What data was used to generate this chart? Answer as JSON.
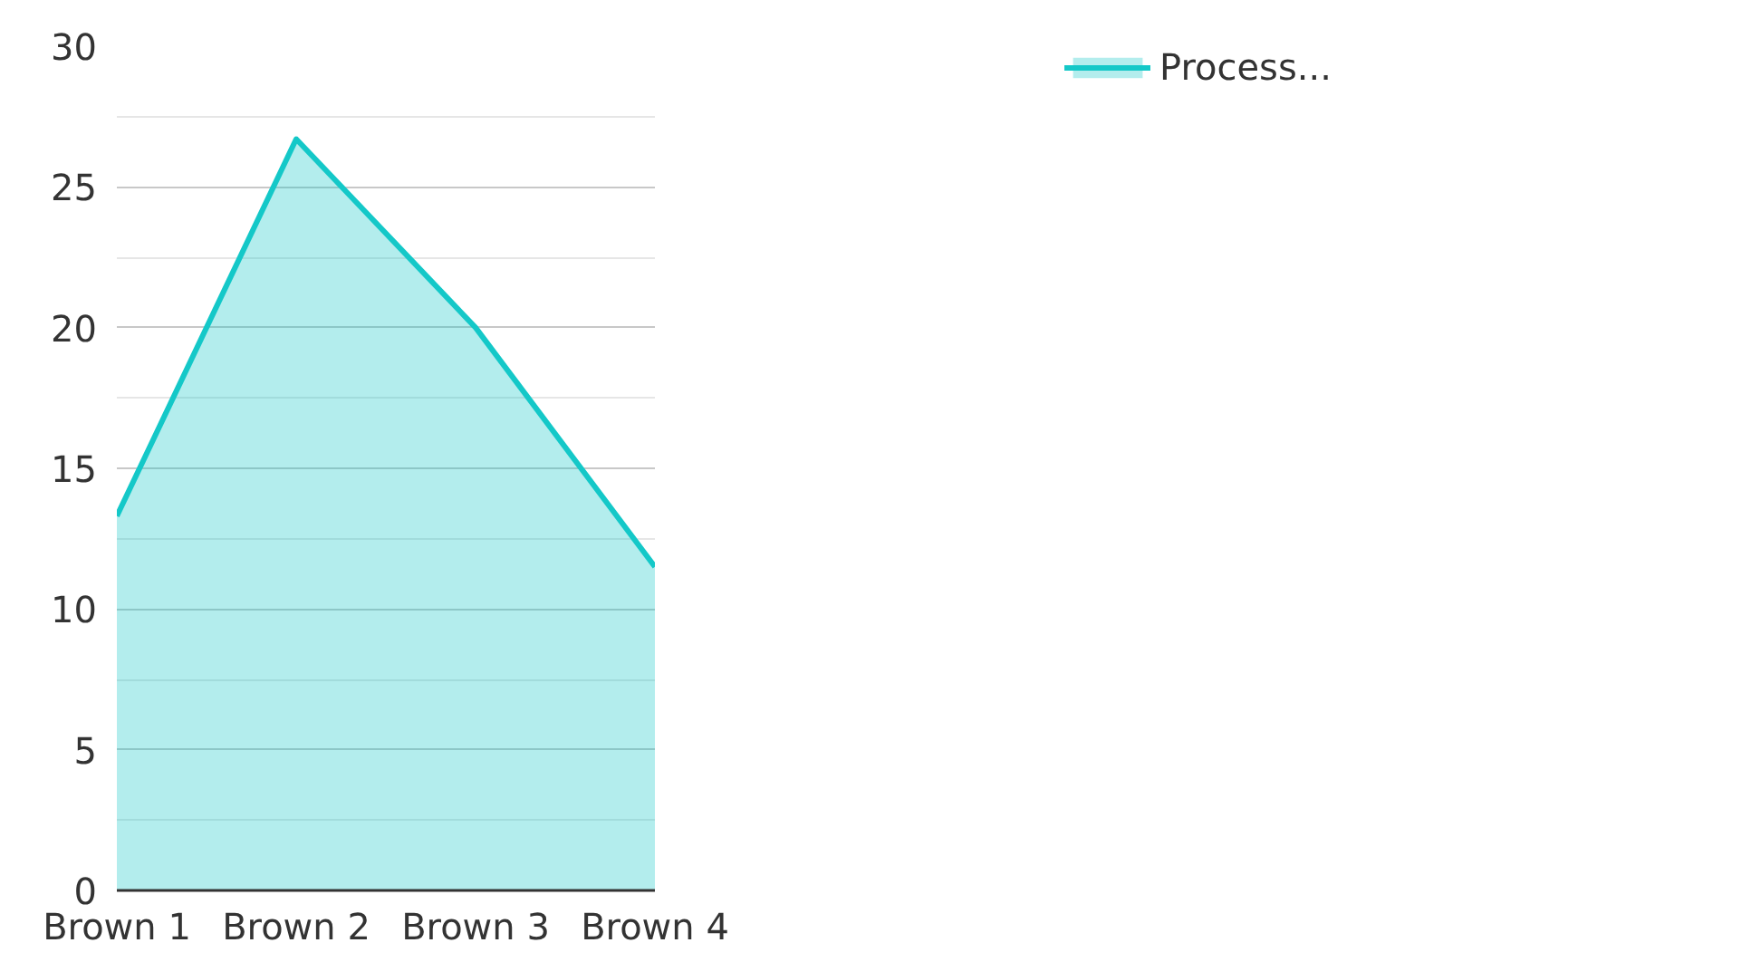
{
  "chart_data": {
    "type": "area",
    "categories": [
      "Brown 1",
      "Brown 2",
      "Brown 3",
      "Brown 4"
    ],
    "series": [
      {
        "name": "Process...",
        "color": "#14c8c8",
        "values": [
          13.3,
          26.7,
          20.0,
          11.5
        ]
      }
    ],
    "ylim": [
      0,
      30
    ],
    "yticks": [
      0,
      5,
      10,
      15,
      20,
      25,
      30
    ],
    "grid": "y",
    "legend": "top right"
  }
}
